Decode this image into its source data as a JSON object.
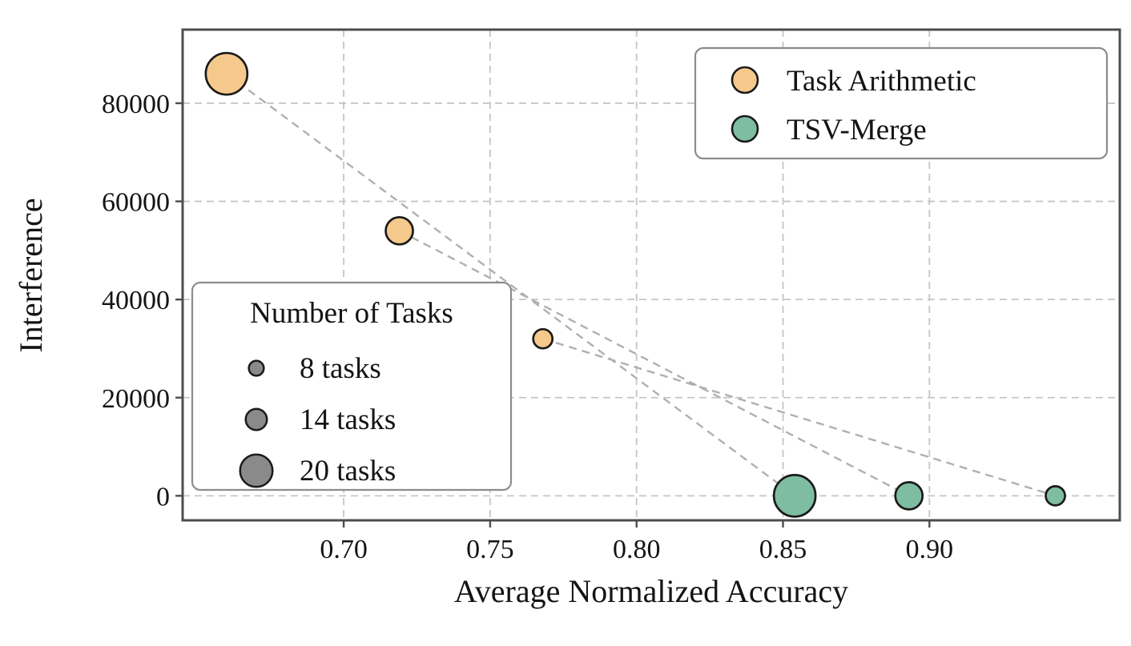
{
  "figure": {
    "background": "#ffffff",
    "spine_color": "#4d4d4d",
    "grid_color": "#c6c6c6",
    "connector_color": "#b0b0b0",
    "marker_edge_color": "#1a1a1a",
    "size_legend_marker_fill": "#8a8a8a"
  },
  "chart_data": {
    "type": "scatter",
    "title": "",
    "xlabel": "Average Normalized Accuracy",
    "ylabel": "Interference",
    "xlim": [
      0.645,
      0.965
    ],
    "ylim": [
      -5000,
      95000
    ],
    "xticks": [
      0.7,
      0.75,
      0.8,
      0.85,
      0.9
    ],
    "yticks": [
      0,
      20000,
      40000,
      60000,
      80000
    ],
    "grid": true,
    "grid_style": "dashed",
    "legend_position": "upper right",
    "series": [
      {
        "name": "Task Arithmetic",
        "color": "#F5C98B",
        "points": [
          {
            "x": 0.66,
            "y": 86000,
            "tasks": 20
          },
          {
            "x": 0.719,
            "y": 54000,
            "tasks": 14
          },
          {
            "x": 0.768,
            "y": 32000,
            "tasks": 8
          }
        ]
      },
      {
        "name": "TSV-Merge",
        "color": "#7EBDA2",
        "points": [
          {
            "x": 0.854,
            "y": 0,
            "tasks": 20
          },
          {
            "x": 0.893,
            "y": 0,
            "tasks": 14
          },
          {
            "x": 0.943,
            "y": 0,
            "tasks": 8
          }
        ]
      }
    ],
    "connect_by_tasks": [
      20,
      14,
      8
    ],
    "marker_radius_px": {
      "8": 12,
      "14": 17,
      "20": 26
    },
    "size_legend": {
      "title": "Number of Tasks",
      "entries": [
        {
          "label": "8 tasks",
          "tasks": 8
        },
        {
          "label": "14 tasks",
          "tasks": 14
        },
        {
          "label": "20 tasks",
          "tasks": 20
        }
      ]
    }
  }
}
